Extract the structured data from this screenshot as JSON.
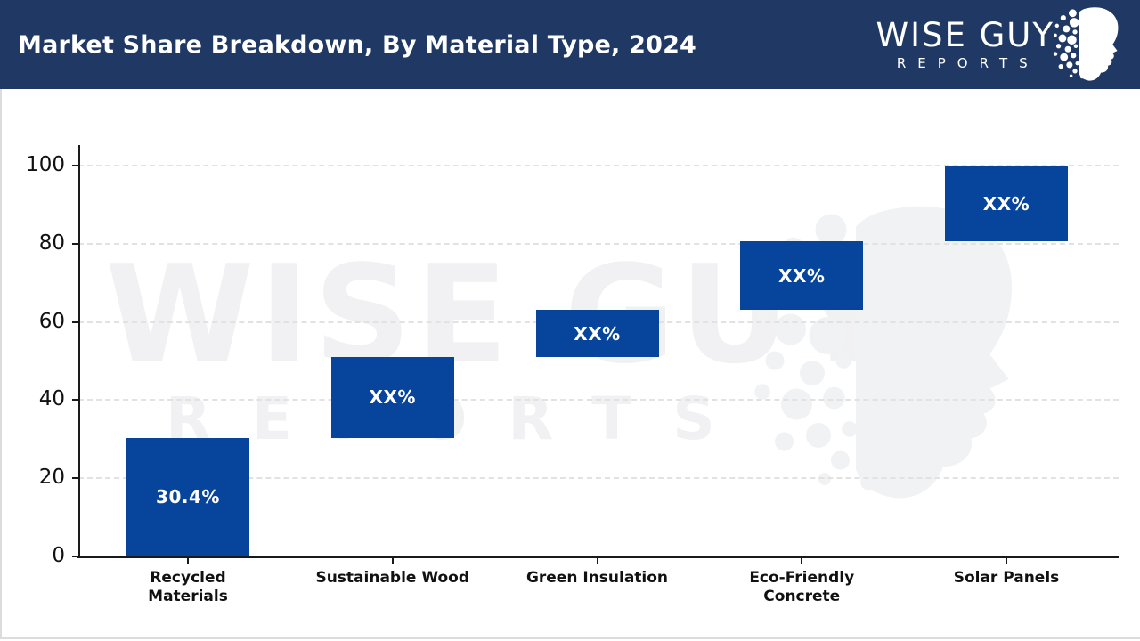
{
  "header": {
    "title": "Market Share Breakdown, By Material Type, 2024",
    "bg_color": "#1f3864",
    "logo": {
      "line1": "WISE GUY",
      "line2": "REPORTS"
    }
  },
  "watermark": {
    "line1": "WISE GUY",
    "line2": "REPORTS"
  },
  "chart_data": {
    "type": "bar",
    "subtype": "waterfall",
    "title": "Market Share Breakdown, By Material Type, 2024",
    "categories": [
      "Recycled Materials",
      "Sustainable Wood",
      "Green Insulation",
      "Eco-Friendly Concrete",
      "Solar Panels"
    ],
    "series": [
      {
        "name": "Market Share (%)",
        "segments": [
          {
            "start": 0,
            "end": 30.4,
            "label": "30.4%"
          },
          {
            "start": 30.4,
            "end": 51,
            "label": "XX%"
          },
          {
            "start": 51,
            "end": 63.1,
            "label": "XX%"
          },
          {
            "start": 63.1,
            "end": 80.6,
            "label": "XX%"
          },
          {
            "start": 80.6,
            "end": 100,
            "label": "XX%"
          }
        ]
      }
    ],
    "xlabel": "",
    "ylabel": "",
    "ylim": [
      0,
      105
    ],
    "yticks": [
      0,
      20,
      40,
      60,
      80,
      100
    ],
    "grid": "horizontal-dashed",
    "legend": "none",
    "bar_color": "#07449c",
    "bar_label_color": "#ffffff"
  }
}
